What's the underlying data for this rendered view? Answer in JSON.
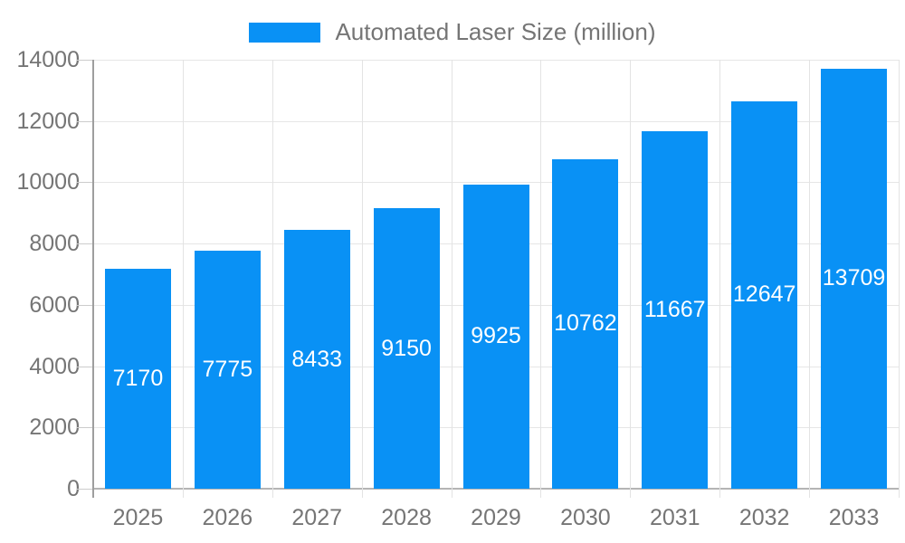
{
  "colors": {
    "bar": "#0991F5",
    "gridline": "#e6e6e6",
    "baseline": "#b4b4b4",
    "axis_line": "#9e9e9e",
    "tick": "#cccccc",
    "axis_text": "#757575",
    "value_text": "#ffffff",
    "background": "#ffffff"
  },
  "chart_data": {
    "type": "bar",
    "title": "Automated Laser Size (million)",
    "legend": {
      "position": "top",
      "entries": [
        "Automated Laser Size (million)"
      ]
    },
    "categories": [
      "2025",
      "2026",
      "2027",
      "2028",
      "2029",
      "2030",
      "2031",
      "2032",
      "2033"
    ],
    "series": [
      {
        "name": "Automated Laser Size (million)",
        "values": [
          7170,
          7775,
          8433,
          9150,
          9925,
          10762,
          11667,
          12647,
          13709
        ]
      }
    ],
    "value_labels": [
      "7170",
      "7775",
      "8433",
      "9150",
      "9925",
      "10762",
      "11667",
      "12647",
      "13709"
    ],
    "value_label_position": "inside-center",
    "xlabel": "",
    "ylabel": "",
    "ylim": [
      0,
      14000
    ],
    "yticks": [
      0,
      2000,
      4000,
      6000,
      8000,
      10000,
      12000,
      14000
    ],
    "ytick_labels": [
      "0",
      "2000",
      "4000",
      "6000",
      "8000",
      "10000",
      "12000",
      "14000"
    ],
    "grid": true
  }
}
